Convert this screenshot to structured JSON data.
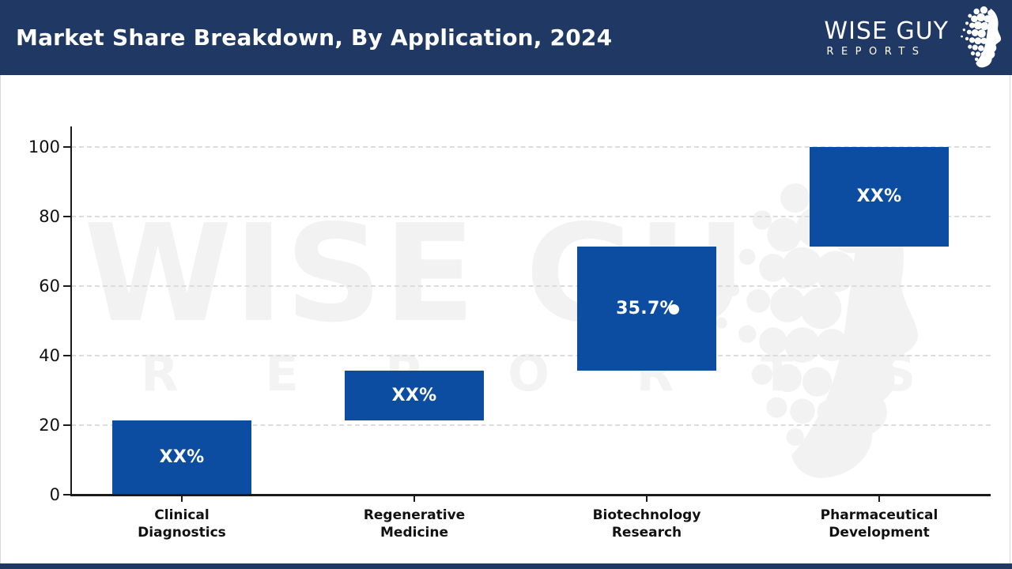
{
  "header": {
    "title": "Market Share Breakdown, By Application, 2024",
    "background_color": "#1F3864",
    "text_color": "#FFFFFF",
    "logo": {
      "line1": "WISE GUY",
      "line2": "REPORTS"
    }
  },
  "watermark": {
    "line1": "WISE GU",
    "line2": "R E P O R T S"
  },
  "footer": {
    "background_color": "#1F3864"
  },
  "chart_data": {
    "type": "bar",
    "subtype": "waterfall",
    "title": "Market Share Breakdown, By Application, 2024",
    "categories": [
      "Clinical Diagnostics",
      "Regenerative Medicine",
      "Biotechnology Research",
      "Pharmaceutical Development"
    ],
    "category_lines": [
      [
        "Clinical",
        "Diagnostics"
      ],
      [
        "Regenerative",
        "Medicine"
      ],
      [
        "Biotechnology",
        "Research"
      ],
      [
        "Pharmaceutical",
        "Development"
      ]
    ],
    "segments": [
      {
        "category": "Clinical Diagnostics",
        "start": 0,
        "end": 21.4,
        "label": "XX%"
      },
      {
        "category": "Regenerative Medicine",
        "start": 21.4,
        "end": 35.7,
        "label": "XX%"
      },
      {
        "category": "Biotechnology Research",
        "start": 35.7,
        "end": 71.4,
        "label": "35.7%"
      },
      {
        "category": "Pharmaceutical Development",
        "start": 71.4,
        "end": 100,
        "label": "XX%"
      }
    ],
    "yticks": [
      0,
      20,
      40,
      60,
      80,
      100
    ],
    "ylim": [
      0,
      106
    ],
    "xlabel": "",
    "ylabel": "",
    "legend": "none",
    "grid": "horizontal-dashed",
    "bar_color": "#0C4DA2",
    "bar_label_color": "#FFFFFF",
    "axis_color": "#1a1a1a",
    "gridline_color": "#dcdcdc"
  }
}
